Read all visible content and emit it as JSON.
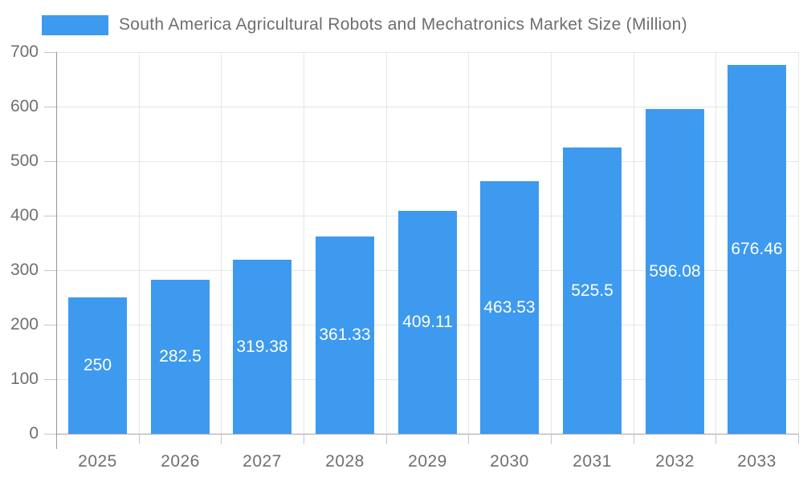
{
  "colors": {
    "bar": "#3D9AEF",
    "grid": "#e6e6e6",
    "axis": "#9c9c9c",
    "tick": "#c6c6c6",
    "label_text": "#6f6f6f",
    "value_text": "#ffffff",
    "background": "#ffffff"
  },
  "legend": {
    "label": "South America Agricultural Robots and Mechatronics Market Size (Million)"
  },
  "chart_data": {
    "type": "bar",
    "title": "South America Agricultural Robots and Mechatronics Market Size (Million)",
    "categories": [
      "2025",
      "2026",
      "2027",
      "2028",
      "2029",
      "2030",
      "2031",
      "2032",
      "2033"
    ],
    "values": [
      250,
      282.5,
      319.38,
      361.33,
      409.11,
      463.53,
      525.5,
      596.08,
      676.46
    ],
    "value_labels": [
      "250",
      "282.5",
      "319.38",
      "361.33",
      "409.11",
      "463.53",
      "525.5",
      "596.08",
      "676.46"
    ],
    "xlabel": "",
    "ylabel": "",
    "ylim": [
      0,
      700
    ],
    "yticks": [
      0,
      100,
      200,
      300,
      400,
      500,
      600,
      700
    ],
    "grid": true,
    "legend_position": "top-left"
  }
}
